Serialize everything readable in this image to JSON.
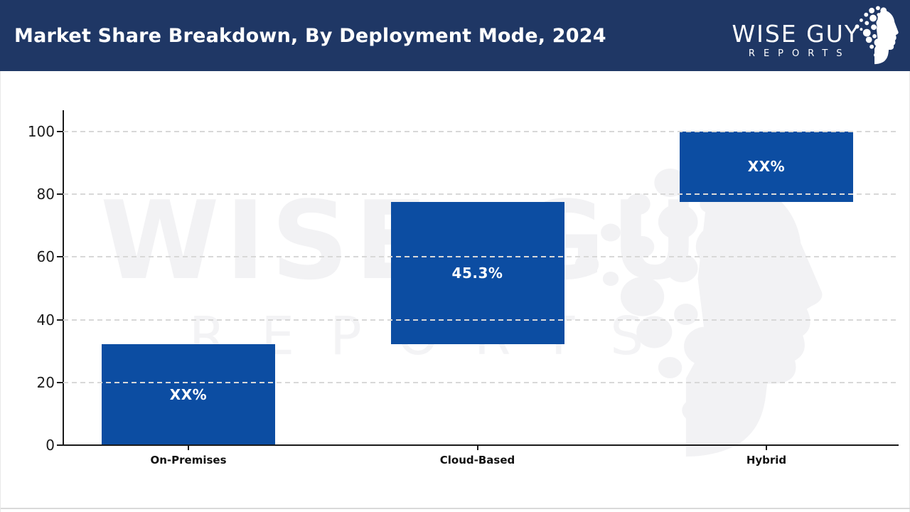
{
  "header": {
    "title": "Market Share Breakdown, By Deployment Mode, 2024",
    "logo": {
      "brand": "WISE GUY",
      "sub": "REPORTS"
    }
  },
  "watermark": {
    "brand": "WISE GUY",
    "sub": "REPORTS"
  },
  "chart_data": {
    "type": "bar",
    "subtype": "waterfall",
    "title": "Market Share Breakdown, By Deployment Mode, 2024",
    "categories": [
      "On-Premises",
      "Cloud-Based",
      "Hybrid"
    ],
    "segments": [
      {
        "category": "On-Premises",
        "start": 0,
        "end": 32.3,
        "label": "XX%"
      },
      {
        "category": "Cloud-Based",
        "start": 32.3,
        "end": 77.6,
        "label": "45.3%"
      },
      {
        "category": "Hybrid",
        "start": 77.6,
        "end": 100,
        "label": "XX%"
      }
    ],
    "ylim": [
      0,
      100
    ],
    "yticks": [
      0,
      20,
      40,
      60,
      80,
      100
    ],
    "grid": "horizontal-dashed",
    "legend": "none",
    "colors": {
      "bar": "#0c4da2",
      "header_bg": "#1f3765",
      "gridline": "#d8d8d8",
      "axis": "#1a1a1a",
      "bar_label_text": "#ffffff",
      "watermark": "#f2f2f4"
    }
  }
}
